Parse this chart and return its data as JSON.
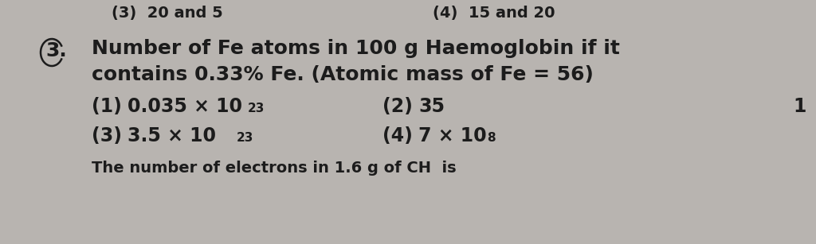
{
  "bg_color": "#b8b4b0",
  "top_text_left": "(3)  20 and 5",
  "top_text_right": "(4)  15 and 20",
  "question_number": "3.",
  "question_line1": "Number of Fe atoms in 100 g Haemoglobin if it",
  "question_line2": "contains 0.33% Fe. (Atomic mass of Fe = 56)",
  "opt1_label": "(1)",
  "opt1_main": "0.035 × 10",
  "opt1_sup": "23",
  "opt2_label": "(2)",
  "opt2_text": "35",
  "opt3_label": "(3)",
  "opt3_main": "3.5 × 10",
  "opt3_sup": "23",
  "opt4_label": "(4)",
  "opt4_main": "7 × 10",
  "opt4_sup": "8",
  "bottom_text": "The number of electrons in 1.6 g of CH  is",
  "right_number": "1",
  "font_color": "#1c1c1c",
  "font_size_top": 14,
  "font_size_question": 18,
  "font_size_options": 17,
  "font_size_sup": 11
}
